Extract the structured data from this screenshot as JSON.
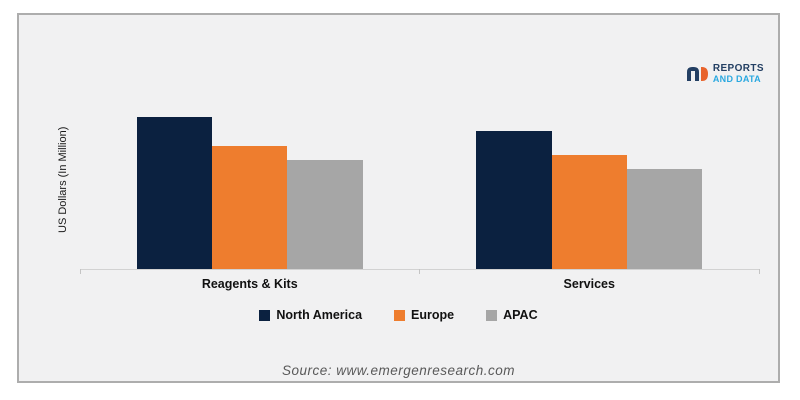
{
  "page": {
    "background": "#ffffff",
    "card_background": "#f1f1f2",
    "card_border": "#adadad"
  },
  "logo": {
    "name": "Reports and Data",
    "line1": "REPORTS",
    "line2": "AND DATA",
    "line1_color": "#233f63",
    "line2_color": "#29a8e0",
    "icon_navy": "#233f63",
    "icon_orange": "#e8632c"
  },
  "chart_data": {
    "type": "bar",
    "title": "",
    "xlabel": "",
    "ylabel": "US Dollars (In Million)",
    "categories": [
      "Reagents & Kits",
      "Services"
    ],
    "series": [
      {
        "name": "North America",
        "color": "#0b2140",
        "values": [
          100,
          91
        ]
      },
      {
        "name": "Europe",
        "color": "#ee7d2e",
        "values": [
          81,
          75
        ]
      },
      {
        "name": "APAC",
        "color": "#a6a6a6",
        "values": [
          72,
          66
        ]
      }
    ],
    "ylim": [
      0,
      110
    ],
    "grid": false,
    "legend_position": "bottom",
    "axis_color": "#d2d2d2"
  },
  "source": {
    "label": "Source: www.emergenresearch.com"
  }
}
